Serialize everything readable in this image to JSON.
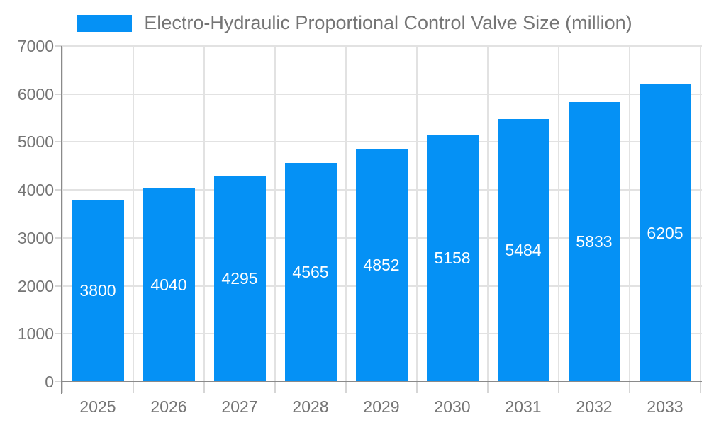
{
  "chart_data": {
    "type": "bar",
    "title": "Electro-Hydraulic Proportional Control Valve Size (million)",
    "categories": [
      "2025",
      "2026",
      "2027",
      "2028",
      "2029",
      "2030",
      "2031",
      "2032",
      "2033"
    ],
    "values": [
      3800,
      4040,
      4295,
      4565,
      4852,
      5158,
      5484,
      5833,
      6205
    ],
    "value_labels": [
      "3800",
      "4040",
      "4295",
      "4565",
      "4852",
      "5158",
      "5484",
      "5833",
      "6205"
    ],
    "ylim": [
      0,
      7000
    ],
    "yticks": [
      0,
      1000,
      2000,
      3000,
      4000,
      5000,
      6000,
      7000
    ],
    "ytick_labels": [
      "0",
      "1000",
      "2000",
      "3000",
      "4000",
      "5000",
      "6000",
      "7000"
    ],
    "xlabel": "",
    "ylabel": "",
    "grid": true,
    "legend_position": "top-center",
    "colors": {
      "bar": "#0591f5",
      "value_label": "#ffffff",
      "axis_text": "#757575",
      "axis_line": "#8a8a8a",
      "gridline": "#e2e2e2",
      "background": "#ffffff"
    }
  }
}
